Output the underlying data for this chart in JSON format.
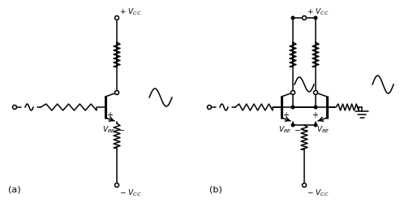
{
  "fig_width": 4.93,
  "fig_height": 2.51,
  "dpi": 100,
  "bg_color": "#ffffff",
  "line_color": "#000000",
  "lw": 1.1
}
